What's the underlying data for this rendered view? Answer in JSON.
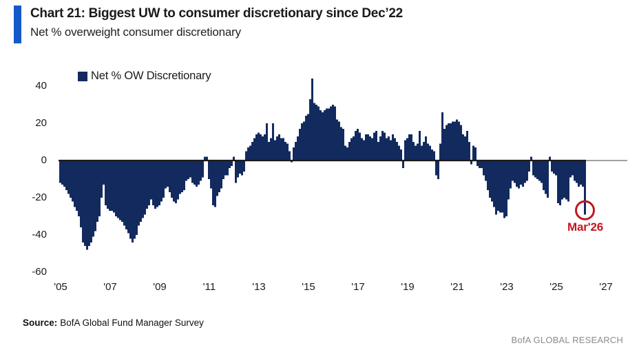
{
  "header": {
    "title": "Chart 21: Biggest UW to consumer discretionary since Dec’22",
    "subtitle": "Net % overweight consumer discretionary"
  },
  "legend": {
    "label": "Net % OW Discretionary"
  },
  "annotation": {
    "label": "Mar'26"
  },
  "footer": {
    "source_label": "Source:",
    "source_text": "BofA Global Fund Manager Survey",
    "brand": "BofA GLOBAL RESEARCH"
  },
  "colors": {
    "bar": "#122A5E",
    "accent_bar": "#1459C9",
    "annotation_red": "#C3161E",
    "axis_dark": "#1a1a1a",
    "axis_gray": "#808080",
    "brand_gray": "#8C8C8C"
  },
  "chart_data": {
    "type": "bar",
    "title": "Net % OW Discretionary",
    "unit": "net % of fund managers overweight",
    "frequency": "monthly",
    "x_start": "2005-01",
    "x_end": "2026-03",
    "ylim": [
      -60,
      45
    ],
    "y_ticks": [
      40,
      20,
      0,
      -20,
      -40,
      -60
    ],
    "x_tick_labels": [
      "'05",
      "'07",
      "'09",
      "'11",
      "'13",
      "'15",
      "'17",
      "'19",
      "'21",
      "'23",
      "'25",
      "'27"
    ],
    "grid": false,
    "legend_position": "top-left",
    "annotated_point": {
      "x": "2026-03",
      "value": -29,
      "label": "Mar'26"
    },
    "values": [
      -12,
      -13,
      -14,
      -16,
      -18,
      -20,
      -22,
      -25,
      -27,
      -30,
      -36,
      -44,
      -46,
      -48,
      -46,
      -44,
      -41,
      -38,
      -33,
      -30,
      -20,
      -13,
      -24,
      -26,
      -27,
      -27,
      -28,
      -30,
      -31,
      -32,
      -33,
      -35,
      -37,
      -39,
      -42,
      -44,
      -42,
      -40,
      -35,
      -33,
      -31,
      -29,
      -26,
      -24,
      -21,
      -24,
      -26,
      -25,
      -24,
      -22,
      -20,
      -15,
      -14,
      -17,
      -20,
      -22,
      -23,
      -21,
      -18,
      -17,
      -16,
      -11,
      -10,
      -9,
      -12,
      -13,
      -14,
      -13,
      -11,
      -9,
      2,
      2,
      -10,
      -15,
      -24,
      -25,
      -19,
      -17,
      -15,
      -10,
      -8,
      -8,
      -4,
      -3,
      2,
      -12,
      -9,
      -7,
      -8,
      -6,
      5,
      7,
      8,
      10,
      12,
      14,
      15,
      14,
      13,
      14,
      20,
      10,
      12,
      20,
      11,
      13,
      14,
      12,
      12,
      10,
      9,
      5,
      -1,
      7,
      10,
      13,
      17,
      20,
      21,
      24,
      25,
      33,
      44,
      31,
      30,
      29,
      27,
      26,
      27,
      28,
      28,
      29,
      30,
      29,
      22,
      21,
      18,
      17,
      8,
      7,
      10,
      12,
      13,
      16,
      17,
      15,
      12,
      11,
      14,
      14,
      13,
      12,
      15,
      16,
      10,
      13,
      16,
      15,
      12,
      13,
      11,
      14,
      12,
      10,
      8,
      6,
      -4,
      11,
      12,
      14,
      14,
      10,
      8,
      9,
      16,
      8,
      10,
      13,
      9,
      8,
      6,
      5,
      -8,
      -10,
      9,
      26,
      17,
      19,
      20,
      20,
      21,
      21,
      22,
      21,
      19,
      14,
      13,
      16,
      10,
      -2,
      8,
      7,
      -3,
      -4,
      -4,
      -8,
      -11,
      -16,
      -20,
      -22,
      -25,
      -29,
      -27,
      -28,
      -28,
      -31,
      -30,
      -21,
      -15,
      -11,
      -12,
      -14,
      -15,
      -13,
      -14,
      -12,
      -11,
      -6,
      2,
      -8,
      -9,
      -10,
      -11,
      -12,
      -16,
      -18,
      -20,
      2,
      -6,
      -7,
      -8,
      -23,
      -24,
      -21,
      -20,
      -21,
      -22,
      -9,
      -8,
      -11,
      -12,
      -14,
      -13,
      -14,
      -29
    ]
  }
}
